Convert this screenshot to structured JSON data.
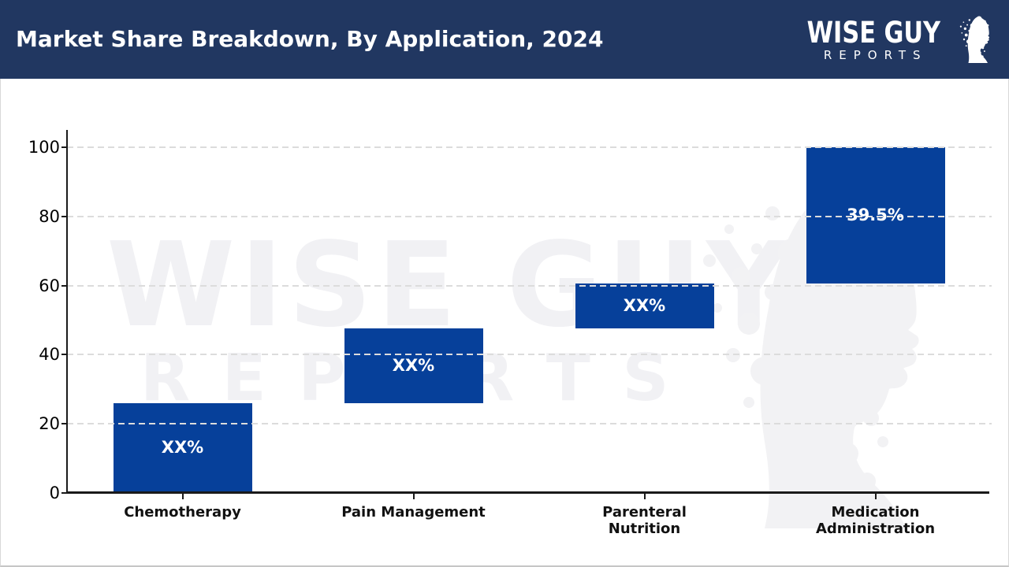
{
  "header": {
    "title": "Market Share Breakdown, By Application, 2024",
    "logo": {
      "name": "WISE GUY",
      "sub": "REPORTS"
    }
  },
  "watermark": {
    "line1": "WISE GUY",
    "line2": "R E P O R T S"
  },
  "chart_data": {
    "type": "bar",
    "subtype": "floating-segment-waterfall",
    "title": "Market Share Breakdown, By Application, 2024",
    "categories": [
      [
        "Chemotherapy"
      ],
      [
        "Pain Management"
      ],
      [
        "Parenteral",
        "Nutrition"
      ],
      [
        "Medication",
        "Administration"
      ]
    ],
    "segments": [
      {
        "category": "Chemotherapy",
        "start": 0,
        "end": 26,
        "label": "XX%"
      },
      {
        "category": "Pain Management",
        "start": 26,
        "end": 47.5,
        "label": "XX%"
      },
      {
        "category": "Parenteral Nutrition",
        "start": 47.5,
        "end": 60.5,
        "label": "XX%"
      },
      {
        "category": "Medication Administration",
        "start": 60.5,
        "end": 100,
        "label": "39.5%"
      }
    ],
    "y_ticks": [
      0,
      20,
      40,
      60,
      80,
      100
    ],
    "ylim": [
      0,
      100
    ],
    "grid": "dashed-horizontal",
    "legend": "none",
    "bar_color": "#06409a",
    "bar_label_color": "#ffffff",
    "axis_color": "#1a1a1a",
    "grid_color": "#dcdcdc"
  },
  "colors": {
    "header_bg": "#213761",
    "watermark": "#f1f1f4"
  }
}
